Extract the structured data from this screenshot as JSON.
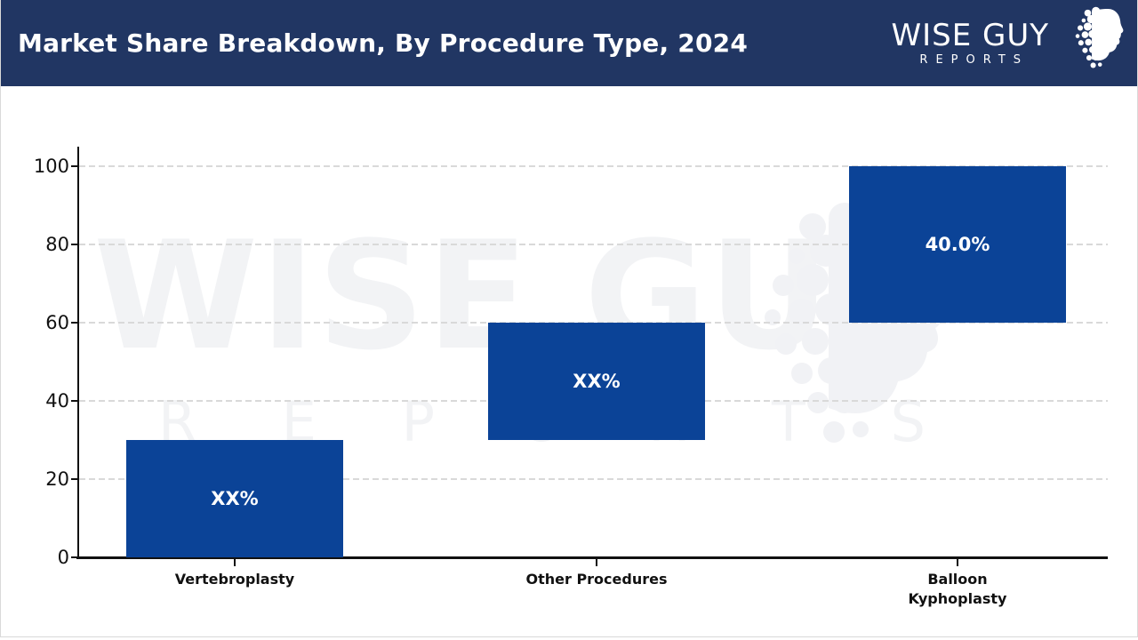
{
  "colors": {
    "header_bg": "#213663",
    "bar_blue": "#0b4397",
    "grid_gray": "#d9d9d9",
    "axis_black": "#111111",
    "watermark_gray": "#f2f3f5"
  },
  "header": {
    "title": "Market Share Breakdown, By Procedure Type, 2024",
    "logo": {
      "line1": "WISE GUY",
      "line2": "REPORTS",
      "face_icon": "wiseguy-face-dots-icon"
    }
  },
  "watermark": {
    "line1": "WISE GUY",
    "line2": "R E P O R T S",
    "face_icon": "wiseguy-face-dots-icon"
  },
  "chart_data": {
    "type": "bar",
    "variant": "floating-waterfall",
    "title": "Market Share Breakdown, By Procedure Type, 2024",
    "categories": [
      "Vertebroplasty",
      "Other Procedures",
      "Balloon Kyphoplasty"
    ],
    "segments": [
      {
        "category": "Vertebroplasty",
        "start": 0,
        "end": 30,
        "label": "XX%"
      },
      {
        "category": "Other Procedures",
        "start": 30,
        "end": 60,
        "label": "XX%"
      },
      {
        "category": "Balloon Kyphoplasty",
        "start": 60,
        "end": 100,
        "label": "40.0%"
      }
    ],
    "xlabel": "",
    "ylabel": "",
    "yticks": [
      0,
      20,
      40,
      60,
      80,
      100
    ],
    "ylim": [
      0,
      105
    ],
    "grid": {
      "horizontal": true,
      "style": "dashed"
    },
    "legend": "none",
    "bar_color": "#0b4397",
    "bar_label_color": "#ffffff"
  }
}
